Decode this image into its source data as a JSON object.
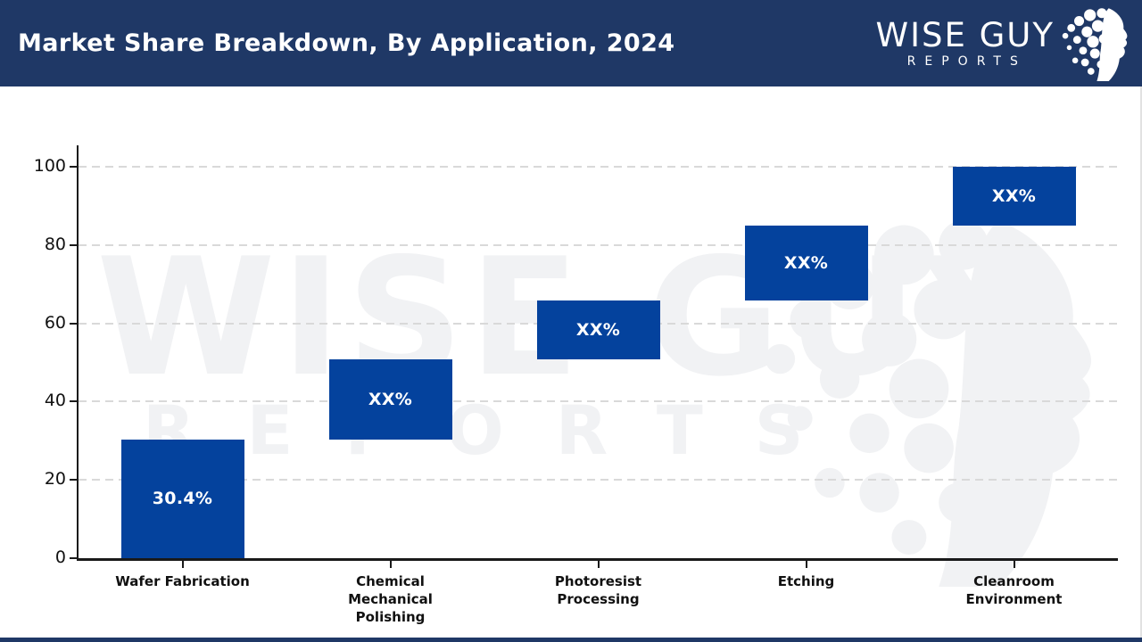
{
  "header": {
    "title": "Market Share Breakdown, By Application, 2024",
    "brand": {
      "line1": "WISE GUY",
      "line2": "REPORTS"
    }
  },
  "watermark": {
    "line1": "WISE GUY",
    "line2": "REPORTS"
  },
  "chart_data": {
    "type": "bar",
    "subtype": "waterfall",
    "title": "Market Share Breakdown, By Application, 2024",
    "categories": [
      "Wafer Fabrication",
      "Chemical Mechanical Polishing",
      "Photoresist Processing",
      "Etching",
      "Cleanroom Environment"
    ],
    "category_label_lines": [
      [
        "Wafer Fabrication"
      ],
      [
        "Chemical",
        "Mechanical",
        "Polishing"
      ],
      [
        "Photoresist",
        "Processing"
      ],
      [
        "Etching"
      ],
      [
        "Cleanroom",
        "Environment"
      ]
    ],
    "segments": [
      {
        "category": "Wafer Fabrication",
        "start": 0,
        "end": 30.4,
        "label": "30.4%"
      },
      {
        "category": "Chemical Mechanical Polishing",
        "start": 30.4,
        "end": 50.7,
        "label": "XX%"
      },
      {
        "category": "Photoresist Processing",
        "start": 50.7,
        "end": 65.8,
        "label": "XX%"
      },
      {
        "category": "Etching",
        "start": 65.8,
        "end": 84.9,
        "label": "XX%"
      },
      {
        "category": "Cleanroom Environment",
        "start": 84.9,
        "end": 100,
        "label": "XX%"
      }
    ],
    "xlabel": "",
    "ylabel": "",
    "ylim": [
      0,
      105
    ],
    "yticks": [
      0,
      20,
      40,
      60,
      80,
      100
    ],
    "grid": "horizontal-dashed",
    "legend": "none",
    "colors": {
      "bar": "#04429D",
      "bar_label": "#FFFFFF",
      "axis": "#1A1A1A",
      "grid": "#D9D9D9",
      "header_bg": "#1F3866",
      "tick_text": "#111111",
      "watermark": "#F1F2F4"
    }
  }
}
